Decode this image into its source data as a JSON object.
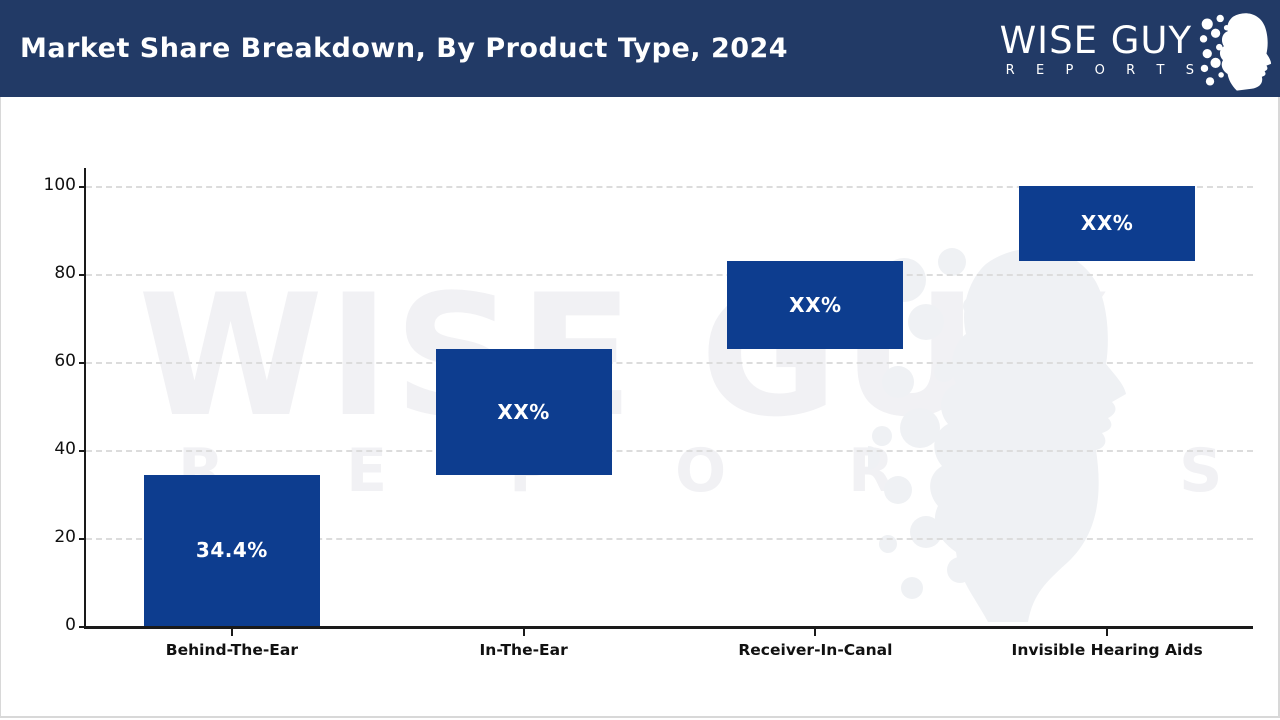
{
  "header": {
    "title": "Market Share Breakdown, By Product Type, 2024",
    "bg_color": "#223a66",
    "logo": {
      "line1": "WISE GUY",
      "line2": "REPORTS",
      "icon": "dotted-head-profile"
    }
  },
  "watermark": {
    "line1": "WISE GUY",
    "line2": "REPORTS",
    "icon": "dotted-head-profile"
  },
  "chart_data": {
    "type": "bar",
    "subtype": "waterfall-stacked-segments",
    "title": "Market Share Breakdown, By Product Type, 2024",
    "categories": [
      "Behind-The-Ear",
      "In-The-Ear",
      "Receiver-In-Canal",
      "Invisible Hearing Aids"
    ],
    "segments": [
      {
        "category": "Behind-The-Ear",
        "start": 0,
        "end": 34.4,
        "value": 34.4,
        "label": "34.4%"
      },
      {
        "category": "In-The-Ear",
        "start": 34.4,
        "end": 63,
        "value": 28.6,
        "label": "XX%"
      },
      {
        "category": "Receiver-In-Canal",
        "start": 63,
        "end": 83,
        "value": 20,
        "label": "XX%"
      },
      {
        "category": "Invisible Hearing Aids",
        "start": 83,
        "end": 100,
        "value": 17,
        "label": "XX%"
      }
    ],
    "xlabel": "",
    "ylabel": "",
    "ylim": [
      0,
      100
    ],
    "yticks": [
      0,
      20,
      40,
      60,
      80,
      100
    ],
    "grid": "horizontal-dashed",
    "legend": "none",
    "bar_color": "#0d3d8f",
    "bar_label_color": "#ffffff"
  }
}
